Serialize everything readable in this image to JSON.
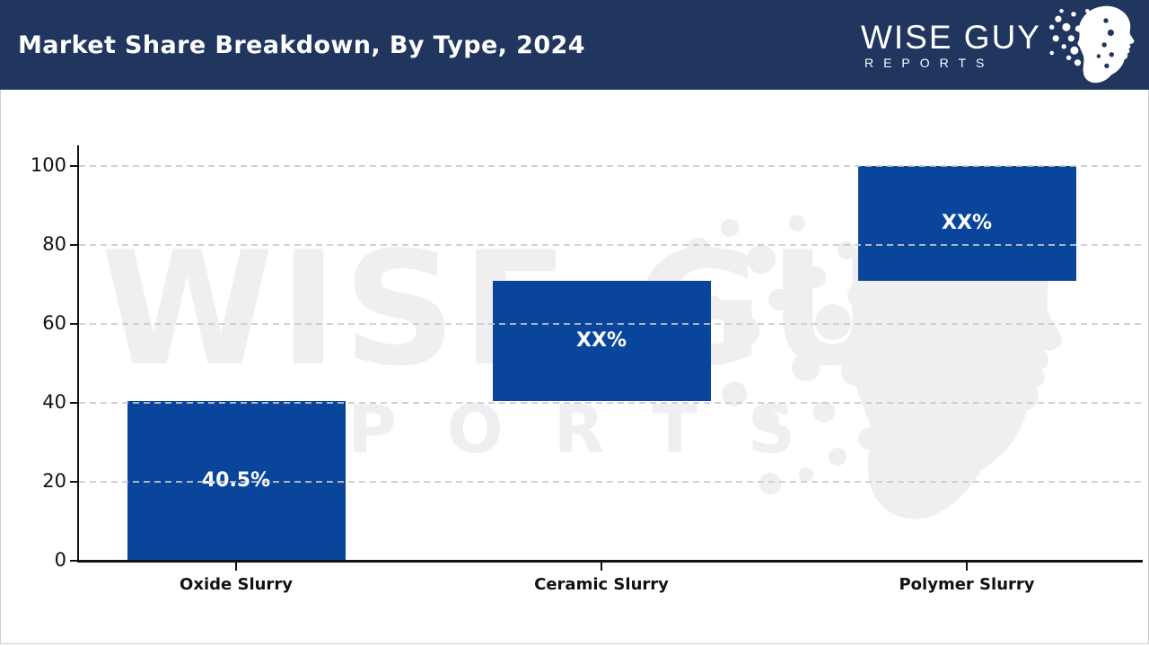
{
  "header": {
    "title": "Market Share Breakdown, By Type, 2024",
    "logo": {
      "line1": "WISE GUY",
      "line2": "REPORTS"
    }
  },
  "watermark": {
    "line1": "WISE GUY",
    "line2": "REPORTS"
  },
  "colors": {
    "header_bg": "#20365f",
    "bar": "#0a459c",
    "bar_label": "#ffffff",
    "watermark": "#efeff1",
    "gridline": "#c9c9c9",
    "axis": "#111111",
    "title_text": "#ffffff"
  },
  "chart_data": {
    "type": "bar",
    "variant": "stacked-waterfall",
    "title": "Market Share Breakdown, By Type, 2024",
    "categories": [
      "Oxide Slurry",
      "Ceramic Slurry",
      "Polymer Slurry"
    ],
    "segments": [
      {
        "category": "Oxide Slurry",
        "start": 0,
        "end": 40.5,
        "label": "40.5%"
      },
      {
        "category": "Ceramic Slurry",
        "start": 40.5,
        "end": 71,
        "label": "XX%"
      },
      {
        "category": "Polymer Slurry",
        "start": 71,
        "end": 100,
        "label": "XX%"
      }
    ],
    "xlabel": "",
    "ylabel": "",
    "ylim": [
      0,
      100
    ],
    "yticks": [
      0,
      20,
      40,
      60,
      80,
      100
    ],
    "grid": "horizontal-dashed",
    "legend": "none"
  }
}
